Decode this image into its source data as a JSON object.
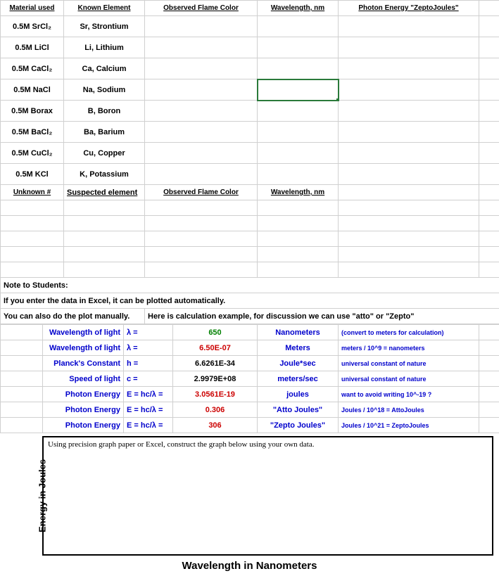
{
  "headers1": {
    "c1": "Material used",
    "c2": "Known Element",
    "c3": "Observed Flame Color",
    "c4": "Wavelength, nm",
    "c5": "Photon Energy \"ZeptoJoules\""
  },
  "rows": [
    {
      "mat": "0.5M SrCl₂",
      "elem": "Sr, Strontium"
    },
    {
      "mat": "0.5M LiCl",
      "elem": "Li, Lithium"
    },
    {
      "mat": "0.5M CaCl₂",
      "elem": "Ca, Calcium"
    },
    {
      "mat": "0.5M NaCl",
      "elem": "Na, Sodium"
    },
    {
      "mat": "0.5M Borax",
      "elem": "B, Boron"
    },
    {
      "mat": "0.5M BaCl₂",
      "elem": "Ba, Barium"
    },
    {
      "mat": "0.5M CuCl₂",
      "elem": "Cu, Copper"
    },
    {
      "mat": "0.5M KCl",
      "elem": "K, Potassium"
    }
  ],
  "headers2": {
    "c1": "Unknown #",
    "c2": "Suspected element",
    "c3": "Observed Flame Color",
    "c4": "Wavelength, nm"
  },
  "notes": {
    "l1": "Note to Students:",
    "l2": "If you enter the data in Excel, it can be plotted automatically.",
    "l3a": "You can also do the plot manually.",
    "l3b": "Here is calculation example, for discussion we can use \"atto\" or \"Zepto\""
  },
  "calc": [
    {
      "d": "Wavelength of light",
      "s": "λ =",
      "v": "650",
      "u": "Nanometers",
      "n": "(convert to meters for calculation)",
      "dc": "blue",
      "vc": "green",
      "uc": "blue",
      "nc": "blue"
    },
    {
      "d": "Wavelength of light",
      "s": "λ =",
      "v": "6.50E-07",
      "u": "Meters",
      "n": "meters / 10^9 = nanometers",
      "dc": "blue",
      "vc": "red",
      "uc": "blue",
      "nc": "blue"
    },
    {
      "d": "Planck's Constant",
      "s": "h =",
      "v": "6.6261E-34",
      "u": "Joule*sec",
      "n": "universal constant of nature",
      "dc": "blue",
      "vc": "",
      "uc": "blue",
      "nc": "blue"
    },
    {
      "d": "Speed of light",
      "s": "c =",
      "v": "2.9979E+08",
      "u": "meters/sec",
      "n": "universal constant of nature",
      "dc": "blue",
      "vc": "",
      "uc": "blue",
      "nc": "blue"
    },
    {
      "d": "Photon Energy",
      "s": "E = hc/λ =",
      "v": "3.0561E-19",
      "u": "joules",
      "n": "want to avoid writing 10^-19 ?",
      "dc": "blue",
      "vc": "red",
      "uc": "blue",
      "nc": "blue"
    },
    {
      "d": "Photon Energy",
      "s": "E = hc/λ =",
      "v": "0.306",
      "u": "\"Atto Joules\"",
      "n": "Joules / 10^18 = AttoJoules",
      "dc": "blue",
      "vc": "red",
      "uc": "blue",
      "nc": "blue"
    },
    {
      "d": "Photon Energy",
      "s": "E = hc/λ =",
      "v": "306",
      "u": "\"Zepto Joules\"",
      "n": "Joules / 10^21 = ZeptoJoules",
      "dc": "blue",
      "vc": "red",
      "uc": "blue",
      "nc": "blue"
    }
  ],
  "graph": {
    "hint": "Using precision graph paper or Excel, construct the graph below using your own data.",
    "ylabel": "Energy in Joules",
    "xlabel": "Wavelength in Nanometers"
  }
}
